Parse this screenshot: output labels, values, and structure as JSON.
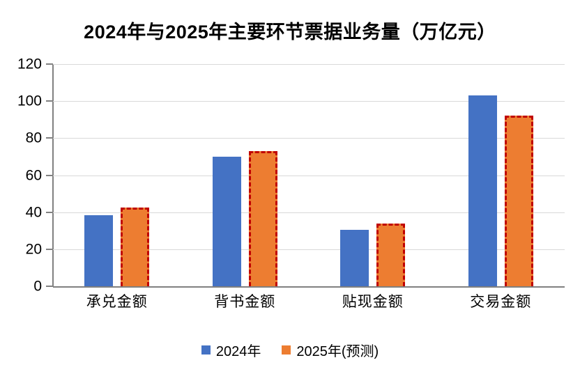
{
  "chart_data": {
    "type": "bar",
    "title": "2024年与2025年主要环节票据业务量（万亿元）",
    "categories": [
      "承兑金额",
      "背书金额",
      "贴现金额",
      "交易金额"
    ],
    "series": [
      {
        "name": "2024年",
        "color": "#4472C4",
        "bar_style": "solid",
        "values": [
          38.5,
          70,
          30.5,
          103
        ]
      },
      {
        "name": "2025年(预测)",
        "color": "#ED7D31",
        "bar_style": "dashed-outline",
        "border_color": "#C00000",
        "values": [
          42.5,
          73,
          34,
          92
        ]
      }
    ],
    "ylim": [
      0,
      120
    ],
    "yticks": [
      0,
      20,
      40,
      60,
      80,
      100,
      120
    ],
    "grid": true,
    "legend_position": "bottom",
    "xlabel": "",
    "ylabel": "",
    "axis_color": "#808080",
    "gridline_color": "#D9D9D9"
  }
}
